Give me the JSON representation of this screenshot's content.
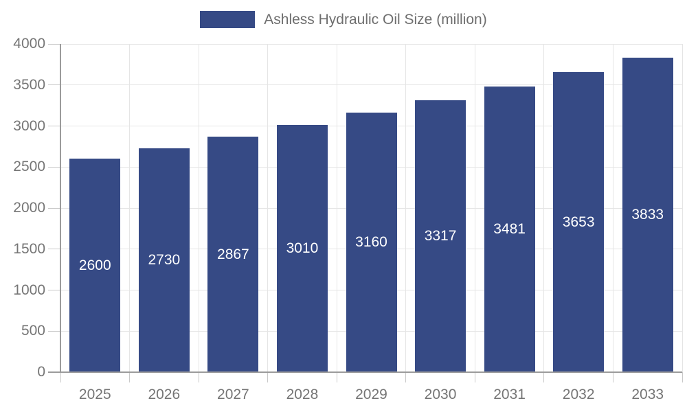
{
  "legend": {
    "label": "Ashless Hydraulic Oil Size (million)"
  },
  "chart_data": {
    "type": "bar",
    "title": "Ashless Hydraulic Oil Size (million)",
    "series_name": "Ashless Hydraulic Oil Size (million)",
    "categories": [
      "2025",
      "2026",
      "2027",
      "2028",
      "2029",
      "2030",
      "2031",
      "2032",
      "2033"
    ],
    "values": [
      2600,
      2730,
      2867,
      3010,
      3160,
      3317,
      3481,
      3653,
      3833
    ],
    "bar_labels": [
      "2600",
      "2730",
      "2867",
      "3010",
      "3160",
      "3317",
      "3481",
      "3653",
      "3833"
    ],
    "xlabel": "",
    "ylabel": "",
    "ylim": [
      0,
      4000
    ],
    "ytick_step": 500,
    "ytick_labels": [
      "0",
      "500",
      "1000",
      "1500",
      "2000",
      "2500",
      "3000",
      "3500",
      "4000"
    ],
    "grid": true,
    "legend_position": "top"
  },
  "colors": {
    "bar": "#364a85",
    "bar_label": "#ffffff",
    "axis_text": "#757575",
    "legend_text": "#6e6e6e",
    "grid_line": "#e5e5e5",
    "axis_line": "#9b9b9b",
    "tick": "#c9c9c9",
    "background": "#ffffff"
  }
}
